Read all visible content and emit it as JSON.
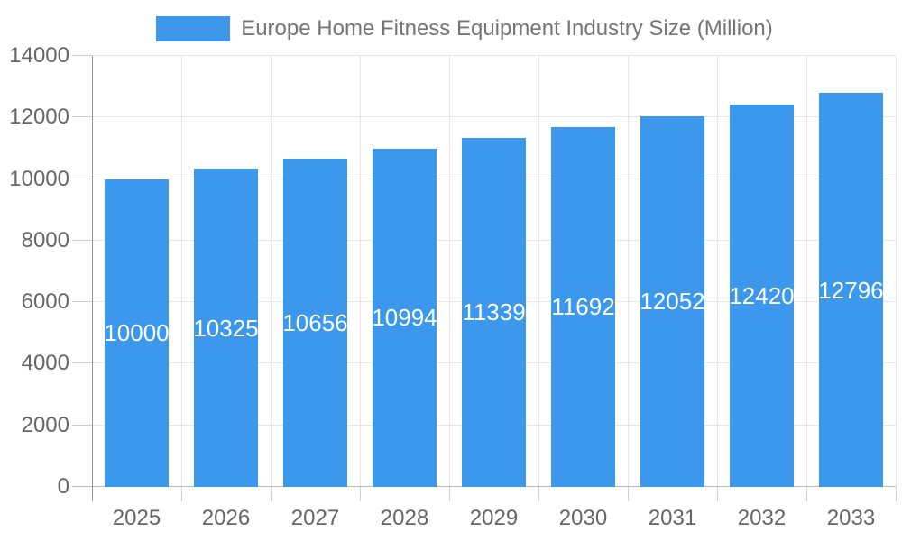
{
  "chart_data": {
    "type": "bar",
    "title": "Europe Home Fitness Equipment Industry Size (Million)",
    "categories": [
      "2025",
      "2026",
      "2027",
      "2028",
      "2029",
      "2030",
      "2031",
      "2032",
      "2033"
    ],
    "values": [
      10000,
      10325,
      10656,
      10994,
      11339,
      11692,
      12052,
      12420,
      12796
    ],
    "xlabel": "",
    "ylabel": "",
    "ylim": [
      0,
      14000
    ],
    "ytick_step": 2000,
    "yticks": [
      0,
      2000,
      4000,
      6000,
      8000,
      10000,
      12000,
      14000
    ],
    "grid": true,
    "legend_position": "top",
    "value_labels_inside_bars": true,
    "colors": {
      "bar": "#3b98ec",
      "value_label": "#ffffff",
      "axis_label": "#666666",
      "legend_label": "#757575",
      "gridline": "#e6e6e6",
      "tick": "#cfcfcf",
      "baseline": "#bdbdbd",
      "axis_line": "#949494"
    }
  }
}
